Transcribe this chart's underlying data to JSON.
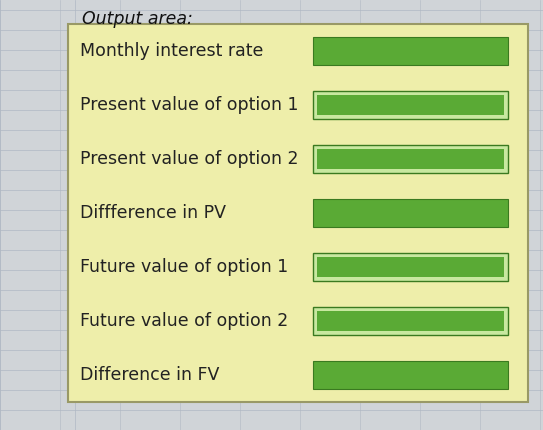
{
  "title": "Output area:",
  "labels": [
    "Monthly interest rate",
    "Present value of option 1",
    "Present value of option 2",
    "Diffference in PV",
    "Future value of option 1",
    "Future value of option 2",
    "Difference in FV"
  ],
  "box_styles": [
    "filled",
    "outlined",
    "outlined",
    "filled",
    "outlined",
    "outlined",
    "filled"
  ],
  "spreadsheet_bg": "#d0d4d8",
  "grid_color": "#b0b8c4",
  "yellow_box_bg": "#eeeeaa",
  "yellow_box_border": "#999966",
  "box_fill_color": "#5aaa35",
  "box_outlined_bg": "#c8e8a0",
  "box_border_color": "#3a7a20",
  "title_color": "#111111",
  "label_color": "#222222",
  "label_fontsize": 12.5,
  "title_fontsize": 12.5
}
